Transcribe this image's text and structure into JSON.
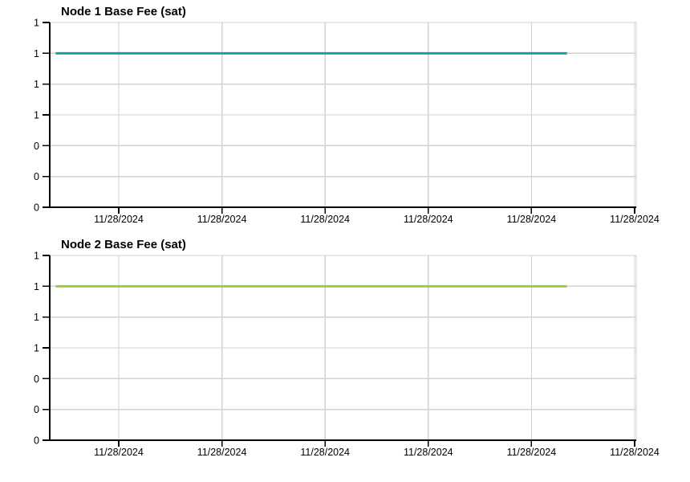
{
  "style": {
    "grid_color": "#D2D2D2",
    "axis_color": "#000000",
    "text_color": "#000000",
    "node1_line_color": "#1A9FA9",
    "node2_line_color": "#9BCE3F"
  },
  "chart_data": [
    {
      "type": "line",
      "title": "Node 1 Base Fee (sat)",
      "xlabel": "",
      "ylabel": "",
      "ylim": [
        0,
        1.2
      ],
      "y_tick_values_top_to_bottom": [
        1.2,
        1.0,
        0.8,
        0.6,
        0.4,
        0.2,
        0
      ],
      "y_tick_labels": [
        "1",
        "1",
        "1",
        "1",
        "0",
        "0",
        "0"
      ],
      "x_tick_labels": [
        "11/28/2024",
        "11/28/2024",
        "11/28/2024",
        "11/28/2024",
        "11/28/2024",
        "11/28/2024"
      ],
      "grid": true,
      "legend": false,
      "series": [
        {
          "name": "Node 1 Base Fee (sat)",
          "color": "#1A9FA9",
          "value": 1,
          "x_start_frac": 0.01,
          "x_end_frac": 0.882,
          "note": "constant base fee of 1 sat across the whole 11/28/2024 time range"
        }
      ]
    },
    {
      "type": "line",
      "title": "Node 2 Base Fee (sat)",
      "xlabel": "",
      "ylabel": "",
      "ylim": [
        0,
        1.2
      ],
      "y_tick_values_top_to_bottom": [
        1.2,
        1.0,
        0.8,
        0.6,
        0.4,
        0.2,
        0
      ],
      "y_tick_labels": [
        "1",
        "1",
        "1",
        "1",
        "0",
        "0",
        "0"
      ],
      "x_tick_labels": [
        "11/28/2024",
        "11/28/2024",
        "11/28/2024",
        "11/28/2024",
        "11/28/2024",
        "11/28/2024"
      ],
      "grid": true,
      "legend": false,
      "series": [
        {
          "name": "Node 2 Base Fee (sat)",
          "color": "#9BCE3F",
          "value": 1,
          "x_start_frac": 0.01,
          "x_end_frac": 0.882,
          "note": "constant base fee of 1 sat across the whole 11/28/2024 time range"
        }
      ]
    }
  ]
}
